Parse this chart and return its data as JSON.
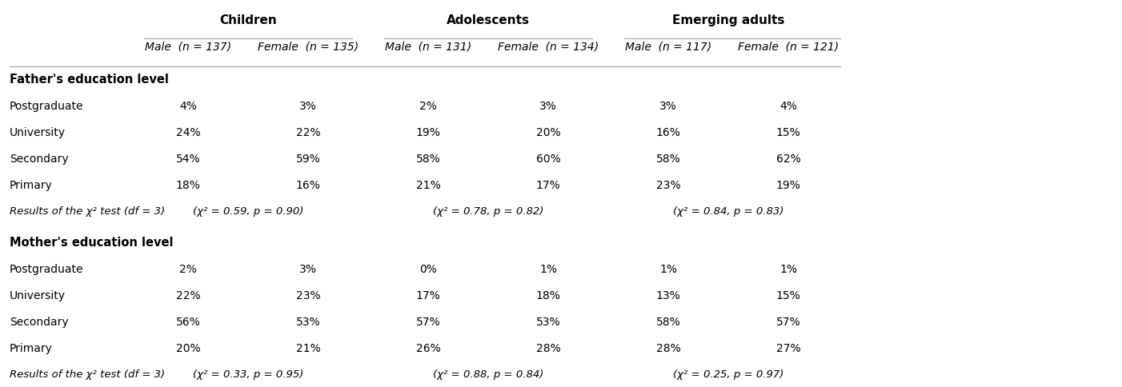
{
  "col_groups": [
    {
      "label": "Children"
    },
    {
      "label": "Adolescents"
    },
    {
      "label": "Emerging adults"
    }
  ],
  "col_headers": [
    "Male  (n = 137)",
    "Female  (n = 135)",
    "Male  (n = 131)",
    "Female  (n = 134)",
    "Male  (n = 117)",
    "Female  (n = 121)"
  ],
  "sections": [
    {
      "section_header": "Father's education level",
      "rows": [
        {
          "label": "Postgraduate",
          "values": [
            "4%",
            "3%",
            "2%",
            "3%",
            "3%",
            "4%"
          ]
        },
        {
          "label": "University",
          "values": [
            "24%",
            "22%",
            "19%",
            "20%",
            "16%",
            "15%"
          ]
        },
        {
          "label": "Secondary",
          "values": [
            "54%",
            "59%",
            "58%",
            "60%",
            "58%",
            "62%"
          ]
        },
        {
          "label": "Primary",
          "values": [
            "18%",
            "16%",
            "21%",
            "17%",
            "23%",
            "19%"
          ]
        },
        {
          "label": "Results of the χ² test (df = 3)",
          "values": [
            "χ² = 0.59, p = 0.90",
            "",
            "χ² = 0.78, p = 0.82",
            "",
            "χ² = 0.84, p = 0.83",
            ""
          ],
          "is_result": true
        }
      ]
    },
    {
      "section_header": "Mother's education level",
      "rows": [
        {
          "label": "Postgraduate",
          "values": [
            "2%",
            "3%",
            "0%",
            "1%",
            "1%",
            "1%"
          ]
        },
        {
          "label": "University",
          "values": [
            "22%",
            "23%",
            "17%",
            "18%",
            "13%",
            "15%"
          ]
        },
        {
          "label": "Secondary",
          "values": [
            "56%",
            "53%",
            "57%",
            "53%",
            "58%",
            "57%"
          ]
        },
        {
          "label": "Primary",
          "values": [
            "20%",
            "21%",
            "26%",
            "28%",
            "28%",
            "27%"
          ]
        },
        {
          "label": "Results of the χ² test (df = 3)",
          "values": [
            "χ² = 0.33, p = 0.95",
            "",
            "χ² = 0.88, p = 0.84",
            "",
            "χ² = 0.25, p = 0.97",
            ""
          ],
          "is_result": true
        }
      ]
    }
  ],
  "bg_color": "#ffffff",
  "text_color": "#000000",
  "line_color": "#aaaaaa",
  "font_size": 10,
  "bold_font_size": 10.5,
  "group_font_size": 11
}
